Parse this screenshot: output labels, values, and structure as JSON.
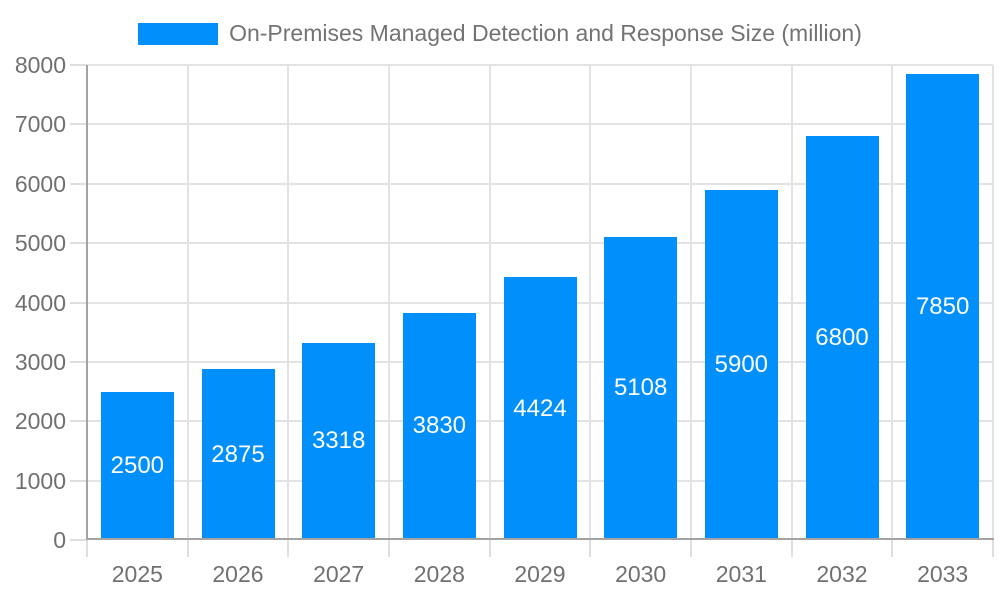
{
  "legend": {
    "label": "On-Premises Managed Detection and Response Size (million)"
  },
  "chart_data": {
    "type": "bar",
    "title": "On-Premises Managed Detection and Response Size (million)",
    "categories": [
      "2025",
      "2026",
      "2027",
      "2028",
      "2029",
      "2030",
      "2031",
      "2032",
      "2033"
    ],
    "values": [
      2500,
      2875,
      3318,
      3830,
      4424,
      5108,
      5900,
      6800,
      7850
    ],
    "xlabel": "",
    "ylabel": "",
    "ylim": [
      0,
      8000
    ],
    "ytick_step": 1000,
    "yticks": [
      "0",
      "1000",
      "2000",
      "3000",
      "4000",
      "5000",
      "6000",
      "7000",
      "8000"
    ],
    "grid": true,
    "legend_position": "top",
    "value_labels": "inside-center",
    "colors": {
      "bar": "#008FFB",
      "value_label": "#ffffff",
      "axis_line": "#a3a3a3",
      "gridline": "#e3e3e3",
      "tick": "#dedede",
      "axis_text": "#707070",
      "legend_text": "#737373",
      "background": "#ffffff"
    }
  }
}
